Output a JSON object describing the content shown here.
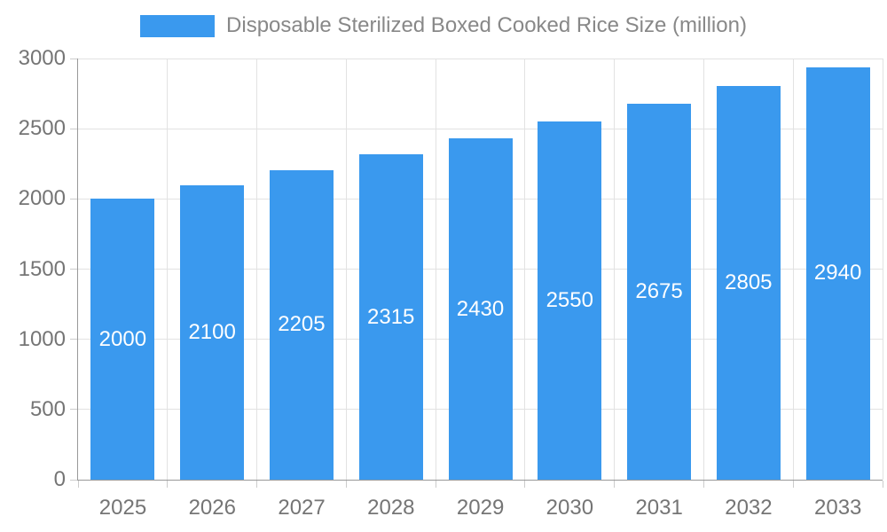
{
  "legend": {
    "label": "Disposable Sterilized Boxed Cooked Rice Size (million)",
    "swatch_icon": "legend-bar-swatch"
  },
  "chart_data": {
    "type": "bar",
    "title": "Disposable Sterilized Boxed Cooked Rice Size (million)",
    "categories": [
      "2025",
      "2026",
      "2027",
      "2028",
      "2029",
      "2030",
      "2031",
      "2032",
      "2033"
    ],
    "values": [
      2000,
      2100,
      2205,
      2315,
      2430,
      2550,
      2675,
      2805,
      2940
    ],
    "series": [
      {
        "name": "Disposable Sterilized Boxed Cooked Rice Size (million)",
        "values": [
          2000,
          2100,
          2205,
          2315,
          2430,
          2550,
          2675,
          2805,
          2940
        ]
      }
    ],
    "xlabel": "",
    "ylabel": "",
    "ylim": [
      0,
      3000
    ],
    "yticks": [
      0,
      500,
      1000,
      1500,
      2000,
      2500,
      3000
    ],
    "grid": true,
    "grid_vertical": true,
    "legend_position": "top",
    "value_labels_position": "inside-center"
  },
  "colors": {
    "bar": "#3a99ee",
    "bar_label": "#ffffff",
    "grid": "#e2e2e2",
    "axis": "#999999",
    "tick": "#cccccc",
    "axis_label": "#757575",
    "legend_text": "#888888",
    "background": "#ffffff"
  }
}
